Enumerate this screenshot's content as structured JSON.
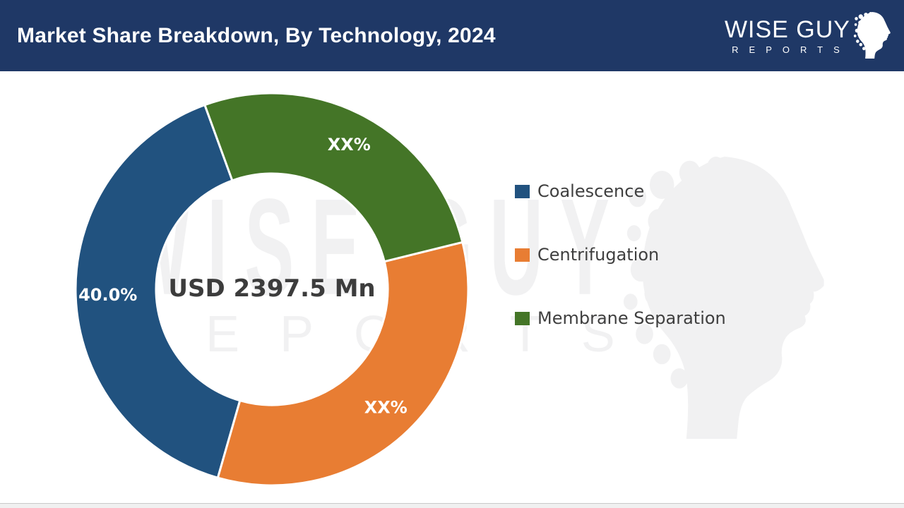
{
  "header": {
    "title": "Market Share Breakdown, By Technology, 2024",
    "logo": {
      "brand": "WISE GUY",
      "sub": "REPORTS"
    }
  },
  "watermark": {
    "brand": "WISE GUY",
    "sub": "REPORTS"
  },
  "chart_data": {
    "type": "donut",
    "title": "Market Share Breakdown, By Technology, 2024",
    "center_label": "USD 2397.5 Mn",
    "start_angle_deg": 110,
    "direction": "ccw",
    "inner_radius_ratio": 0.59,
    "label_radius_ratio": 0.6,
    "legend_position": "right",
    "series": [
      {
        "name": "Coalescence",
        "value": 40.0,
        "display_label": "40.0%",
        "color": "#21527F"
      },
      {
        "name": "Centrifugation",
        "value": 33.3,
        "display_label": "XX%",
        "color": "#E87D33"
      },
      {
        "name": "Membrane Separation",
        "value": 26.7,
        "display_label": "XX%",
        "color": "#447527"
      }
    ]
  },
  "icons": {
    "logo_face": "dot-face-profile",
    "watermark_face": "dot-face-profile"
  },
  "colors": {
    "header_bg": "#1F3866",
    "page_bg": "#FFFFFF",
    "text_dark": "#3C3C3C",
    "watermark": "#F1F1F2",
    "footer_bg": "#F0F0F0",
    "footer_border": "#C9C9C9",
    "slice_label_text": "#FFFFFF"
  }
}
